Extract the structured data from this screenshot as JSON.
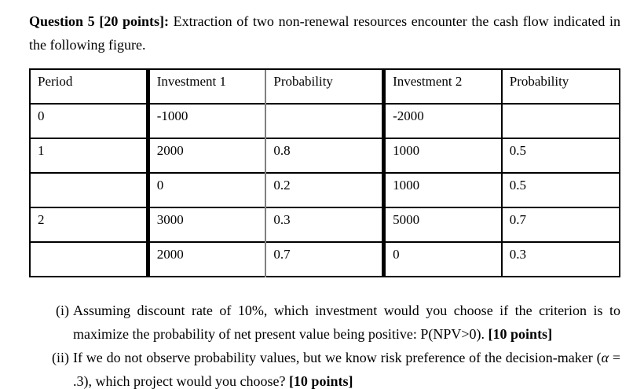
{
  "question": {
    "label": "Question 5 [20 points]:",
    "text": " Extraction of two non-renewal resources encounter the cash flow indicated in the following figure."
  },
  "table": {
    "headers": [
      "Period",
      "Investment 1",
      "Probability",
      "Investment 2",
      "Probability"
    ],
    "rows": [
      [
        "0",
        "-1000",
        "",
        "-2000",
        ""
      ],
      [
        "1",
        "2000",
        "0.8",
        "1000",
        "0.5"
      ],
      [
        "",
        "0",
        "0.2",
        "1000",
        "0.5"
      ],
      [
        "2",
        "3000",
        "0.3",
        "5000",
        "0.7"
      ],
      [
        "",
        "2000",
        "0.7",
        "0",
        "0.3"
      ]
    ]
  },
  "subquestions": [
    {
      "marker": "(i)",
      "text": "Assuming discount rate of 10%, which investment would you choose if the criterion is to maximize the probability of net present value being positive: P(NPV>0). ",
      "points": "[10 points]"
    },
    {
      "marker": "(ii)",
      "text_before_alpha": "If we do not observe probability values, but we know risk preference of the decision-maker (",
      "alpha": "α",
      "text_after_alpha": " = .3), which project would you choose? ",
      "points": "[10 points]"
    }
  ],
  "colors": {
    "text": "#000000",
    "background": "#ffffff",
    "thin_inner_border": "#808080",
    "main_border": "#000000"
  }
}
